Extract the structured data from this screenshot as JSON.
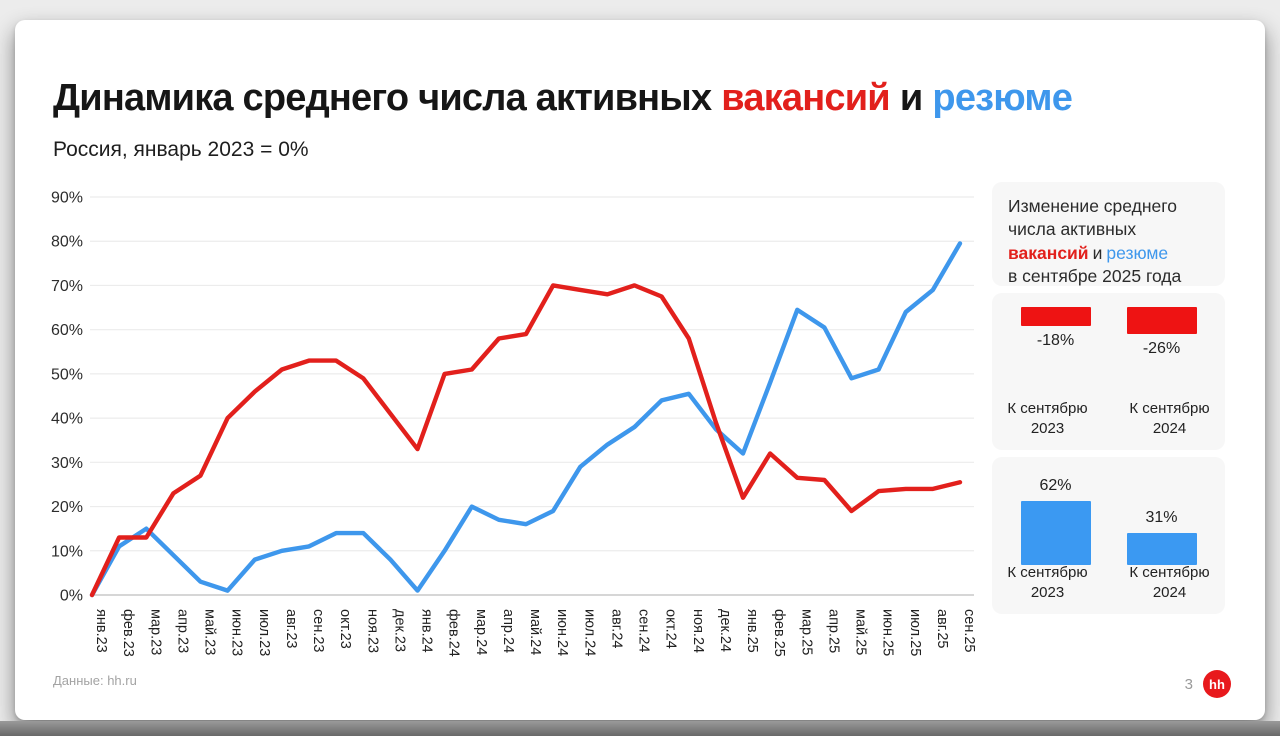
{
  "slide": {
    "title": {
      "prefix": "Динамика среднего числа активных",
      "vacancies_word": "вакансий",
      "conjunction": "и",
      "resumes_word": "резюме"
    },
    "subtitle": "Россия, январь 2023 = 0%",
    "footer": {
      "source": "Данные: hh.ru",
      "page_number": "3",
      "logo_text": "hh"
    }
  },
  "side_panel": {
    "summary": {
      "line1": "Изменение среднего",
      "line2": "числа активных",
      "vacancies_word": "вакансий",
      "conjunction": "и",
      "resumes_word": "резюме",
      "line4": "в сентябре 2025 года"
    },
    "vacancies_card": {
      "bars": [
        {
          "value": -18,
          "label": "-18%",
          "caption_line1": "К сентябрю",
          "caption_line2": "2023"
        },
        {
          "value": -26,
          "label": "-26%",
          "caption_line1": "К сентябрю",
          "caption_line2": "2024"
        }
      ]
    },
    "resumes_card": {
      "bars": [
        {
          "value": 62,
          "label": "62%",
          "caption_line1": "К сентябрю",
          "caption_line2": "2023"
        },
        {
          "value": 31,
          "label": "31%",
          "caption_line1": "К сентябрю",
          "caption_line2": "2024"
        }
      ]
    }
  },
  "colors": {
    "vacancies_red": "#e2201c",
    "resumes_blue": "#3e97ec",
    "grid_gray": "#ececec",
    "zero_axis_gray": "#c9c9c9"
  },
  "chart_data": {
    "type": "line",
    "title": "Динамика среднего числа активных вакансий и резюме",
    "subtitle": "Россия, январь 2023 = 0%",
    "x_categories": [
      "янв.23",
      "фев.23",
      "мар.23",
      "апр.23",
      "май.23",
      "июн.23",
      "июл.23",
      "авг.23",
      "сен.23",
      "окт.23",
      "ноя.23",
      "дек.23",
      "янв.24",
      "фев.24",
      "мар.24",
      "апр.24",
      "май.24",
      "июн.24",
      "июл.24",
      "авг.24",
      "сен.24",
      "окт.24",
      "ноя.24",
      "дек.24",
      "янв.25",
      "фев.25",
      "мар.25",
      "апр.25",
      "май.25",
      "июн.25",
      "июл.25",
      "авг.25",
      "сен.25"
    ],
    "series": [
      {
        "name": "вакансии",
        "color": "#e2201c",
        "values": [
          0,
          13,
          13,
          23,
          27,
          40,
          46,
          51,
          53,
          53,
          49,
          41,
          33,
          50,
          51,
          58,
          59,
          70,
          69,
          68,
          70,
          67.5,
          58,
          39,
          22,
          32,
          26.5,
          26,
          19,
          23.5,
          24,
          24,
          25.5
        ]
      },
      {
        "name": "резюме",
        "color": "#3e97ec",
        "values": [
          0,
          11,
          15,
          9,
          3,
          1,
          8,
          10,
          11,
          14,
          14,
          8,
          1,
          10,
          20,
          17,
          16,
          19,
          29,
          34,
          38,
          44,
          45.5,
          37.5,
          32,
          48,
          64.5,
          60.5,
          49,
          51,
          64,
          69,
          79.5
        ]
      }
    ],
    "ylim": [
      0,
      90
    ],
    "yticks": [
      0,
      10,
      20,
      30,
      40,
      50,
      60,
      70,
      80,
      90
    ],
    "ytick_suffix": "%",
    "grid": "horizontal",
    "legend": "none"
  }
}
